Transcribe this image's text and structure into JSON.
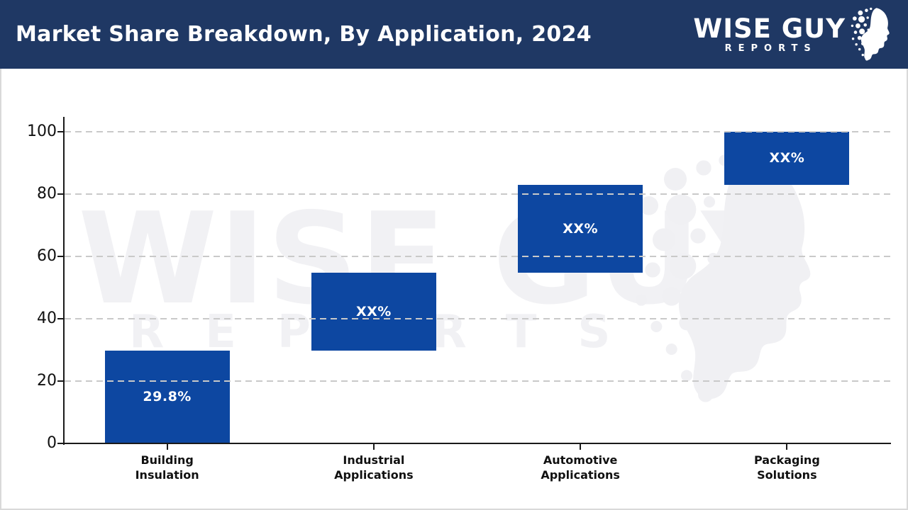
{
  "header": {
    "title": "Market Share Breakdown, By Application, 2024",
    "logo": {
      "line1": "WISE GUY",
      "line2": "REPORTS"
    }
  },
  "watermark": {
    "line1": "WISE GUY",
    "line2": "REPORTS"
  },
  "colors": {
    "header_bg": "#1f3864",
    "bar": "#0d47a1",
    "bar_label": "#ffffff",
    "gridline": "#c9c9c9",
    "watermark": "#f1f1f4",
    "axis": "#1a1a1a"
  },
  "chart_data": {
    "type": "bar",
    "subtype": "floating-waterfall",
    "title": "Market Share Breakdown, By Application, 2024",
    "categories": [
      "Building Insulation",
      "Industrial Applications",
      "Automotive Applications",
      "Packaging Solutions"
    ],
    "category_lines": [
      [
        "Building",
        "Insulation"
      ],
      [
        "Industrial",
        "Applications"
      ],
      [
        "Automotive",
        "Applications"
      ],
      [
        "Packaging",
        "Solutions"
      ]
    ],
    "segments": [
      {
        "start": 0,
        "end": 29.8,
        "label": "29.8%"
      },
      {
        "start": 29.8,
        "end": 54.8,
        "label": "XX%"
      },
      {
        "start": 54.8,
        "end": 83.0,
        "label": "XX%"
      },
      {
        "start": 83.0,
        "end": 100.0,
        "label": "XX%"
      }
    ],
    "ylim": [
      0,
      100
    ],
    "yticks": [
      0,
      20,
      40,
      60,
      80,
      100
    ],
    "xlabel": "",
    "ylabel": "",
    "grid": "horizontal-dashed",
    "grid_on_top": true,
    "legend": "none",
    "bar_color": "#0d47a1",
    "bar_label_color": "#ffffff"
  }
}
